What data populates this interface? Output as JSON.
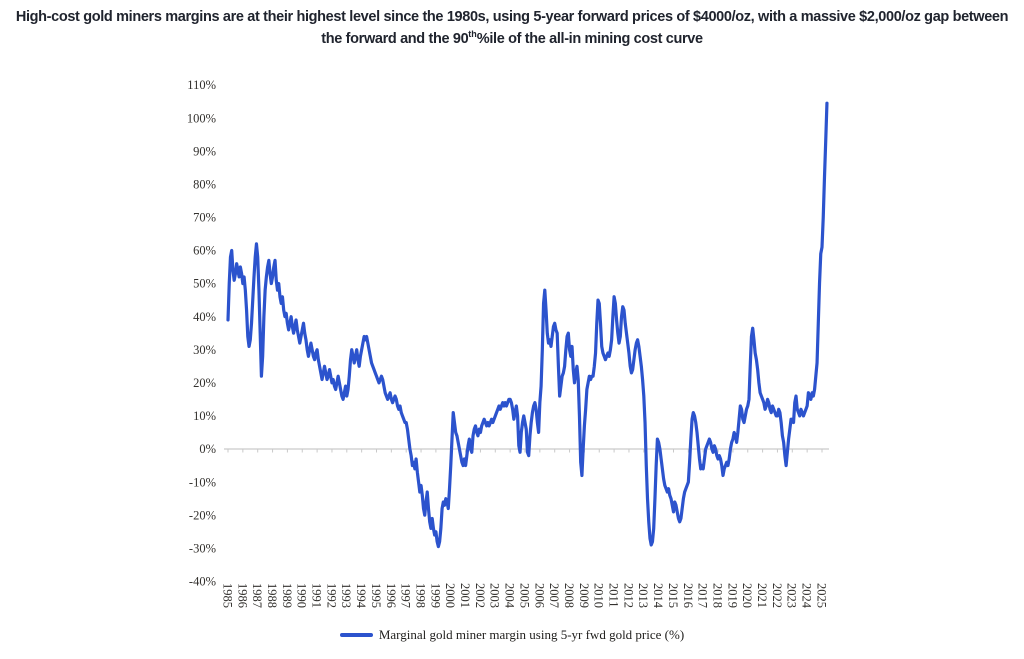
{
  "title": {
    "line1": "High-cost gold miners margins are at their highest level since the 1980s, using 5-year forward prices of $4000/oz, with a massive $2,000/oz gap between",
    "line2_before_sup": "the forward and the 90",
    "line2_sup": "th",
    "line2_after_sup": "%ile of the all-in mining cost curve"
  },
  "legend": {
    "label": "Marginal gold miner margin using 5-yr fwd gold price (%)"
  },
  "colors": {
    "line": "#2c53cd",
    "axis": "#c9c9c9",
    "tick_text": "#33312e",
    "title_text": "#20242e"
  },
  "chart_data": {
    "type": "line",
    "title": "High-cost gold miners margins are at their highest level since the 1980s, using 5-year forward prices of $4000/oz, with a massive $2,000/oz gap between the forward and the 90th%ile of the all-in mining cost curve",
    "legend_position": "bottom",
    "grid": false,
    "ylim": [
      -40,
      110
    ],
    "y_tick_step": 10,
    "y_tick_labels": [
      "110%",
      "100%",
      "90%",
      "80%",
      "70%",
      "60%",
      "50%",
      "40%",
      "30%",
      "20%",
      "10%",
      "0%",
      "-10%",
      "-20%",
      "-30%",
      "-40%"
    ],
    "x_tick_labels": [
      "1985",
      "1986",
      "1987",
      "1988",
      "1989",
      "1990",
      "1991",
      "1992",
      "1993",
      "1994",
      "1995",
      "1996",
      "1997",
      "1998",
      "1999",
      "2000",
      "2001",
      "2002",
      "2003",
      "2004",
      "2005",
      "2006",
      "2007",
      "2008",
      "2009",
      "2010",
      "2011",
      "2012",
      "2013",
      "2014",
      "2015",
      "2016",
      "2017",
      "2018",
      "2019",
      "2020",
      "2021",
      "2022",
      "2023",
      "2024",
      "2025"
    ],
    "x_start_year": 1985,
    "x_frequency": "monthly",
    "series": [
      {
        "name": "Marginal gold miner margin using 5-yr fwd gold price (%)",
        "color": "#2c53cd",
        "values": [
          39,
          50,
          58,
          60,
          54,
          51,
          53,
          56,
          54,
          52,
          55,
          53,
          50,
          52,
          48,
          42,
          34,
          31,
          33,
          38,
          45,
          52,
          58,
          62,
          58,
          48,
          35,
          22,
          28,
          40,
          48,
          52,
          55,
          57,
          53,
          50,
          52,
          55,
          57,
          51,
          48,
          50,
          46,
          44,
          46,
          42,
          40,
          41,
          38,
          36,
          38,
          40,
          37,
          35,
          37,
          39,
          36,
          34,
          32,
          34,
          36,
          38,
          35,
          33,
          30,
          28,
          30,
          32,
          30,
          28,
          27,
          29,
          30,
          27,
          25,
          23,
          21,
          23,
          25,
          23,
          21,
          22,
          24,
          22,
          20,
          21,
          19,
          18,
          20,
          22,
          20,
          18,
          16,
          15,
          17,
          19,
          16,
          18,
          22,
          27,
          30,
          28,
          26,
          28,
          30,
          27,
          25,
          28,
          30,
          32,
          34,
          33,
          34,
          32,
          30,
          28,
          26,
          25,
          24,
          23,
          22,
          21,
          20,
          21,
          22,
          21,
          19,
          17,
          16,
          15,
          16,
          17,
          15,
          14,
          15,
          16,
          15,
          13,
          12,
          13,
          11,
          10,
          9,
          8,
          8,
          6,
          3,
          0,
          -2,
          -5,
          -4,
          -6,
          -3,
          -7,
          -10,
          -13,
          -11,
          -14,
          -18,
          -20,
          -16,
          -13,
          -18,
          -22,
          -24,
          -21,
          -24,
          -26,
          -25,
          -28,
          -29.5,
          -28,
          -24,
          -18,
          -16,
          -17,
          -15,
          -16,
          -18,
          -12,
          -5,
          3,
          11,
          8,
          5,
          4,
          2,
          0,
          -2,
          -4,
          -5,
          -3,
          -5,
          -2,
          1,
          3,
          0,
          -1,
          4,
          6,
          7,
          5,
          4,
          6,
          5,
          7,
          8,
          9,
          8,
          7,
          8,
          7,
          8,
          9,
          8,
          9,
          10,
          11,
          12,
          13,
          12,
          13,
          14,
          13,
          14,
          13,
          14,
          15,
          15,
          14,
          12,
          9,
          11,
          13,
          10,
          1,
          -1,
          5,
          8,
          10,
          8,
          6,
          -1,
          -2,
          4,
          8,
          11,
          13,
          14,
          12,
          8,
          5,
          14,
          19,
          30,
          44,
          48,
          42,
          35,
          32,
          33,
          31,
          34,
          37,
          38,
          36,
          35,
          25,
          16,
          19,
          22,
          23,
          25,
          30,
          34,
          35,
          30,
          28,
          31,
          24,
          20,
          23,
          25,
          21,
          10,
          -4,
          -8,
          0,
          7,
          12,
          18,
          20,
          22,
          21,
          22,
          22,
          25,
          29,
          38,
          45,
          44,
          38,
          31,
          29,
          28,
          27,
          28,
          29,
          28,
          30,
          33,
          40,
          46,
          44,
          39,
          35,
          32,
          34,
          40,
          43,
          42,
          38,
          35,
          32,
          29,
          25,
          23,
          24,
          27,
          30,
          32,
          33,
          31,
          28,
          25,
          21,
          16,
          8,
          -5,
          -15,
          -22,
          -27,
          -29,
          -28,
          -24,
          -15,
          -5,
          3,
          2,
          0,
          -3,
          -6,
          -9,
          -11,
          -12,
          -13,
          -12,
          -14,
          -15,
          -17,
          -19,
          -16,
          -17,
          -19,
          -21,
          -22,
          -21,
          -18,
          -15,
          -13,
          -12,
          -11,
          -10,
          -4,
          3,
          9,
          11,
          10,
          8,
          5,
          1,
          -3,
          -6,
          -5,
          -6,
          -3,
          0,
          1,
          2,
          3,
          2,
          0,
          -1,
          1,
          0,
          -2,
          -3,
          -2,
          -3,
          -5,
          -8,
          -6,
          -5,
          -4,
          -5,
          -3,
          0,
          2,
          3,
          5,
          4,
          2,
          5,
          9,
          13,
          12,
          9,
          8,
          10,
          12,
          13,
          15,
          25,
          34,
          36.5,
          33,
          29,
          27,
          24,
          20,
          17,
          16,
          15,
          14,
          12,
          13,
          15,
          14,
          12,
          11,
          13,
          12,
          11,
          10,
          10,
          12,
          11,
          8,
          4,
          2,
          -2,
          -5,
          -1,
          3,
          6,
          9,
          9,
          8,
          14,
          16,
          12,
          11,
          10,
          12,
          11,
          10,
          11,
          12,
          13,
          17,
          16,
          15,
          17,
          16,
          18,
          22,
          26,
          38,
          50,
          59,
          61,
          70,
          82,
          93,
          104.5
        ]
      }
    ]
  }
}
